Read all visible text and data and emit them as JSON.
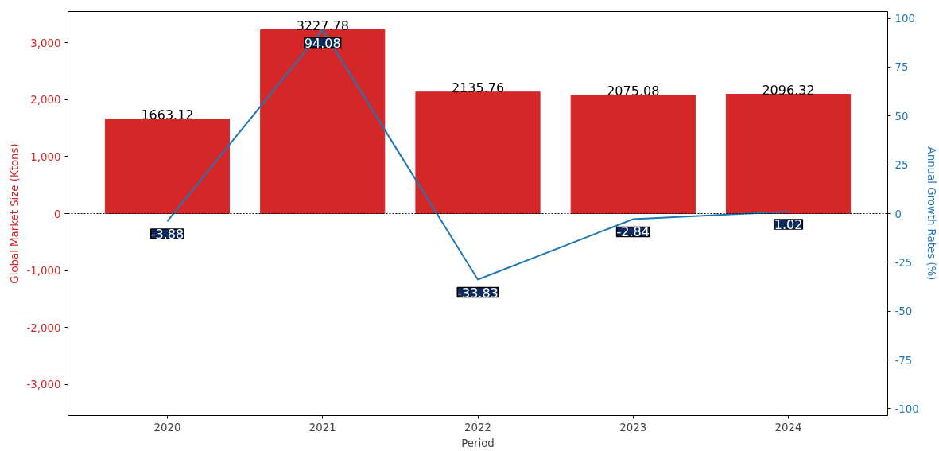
{
  "chart_data": {
    "type": "bar",
    "xlabel": "Period",
    "ylabel": "Global Market Size (Ktons)",
    "y2label": "Annual Growth Rates (%)",
    "categories": [
      "2020",
      "2021",
      "2022",
      "2023",
      "2024"
    ],
    "series": [
      {
        "color": "#d62728",
        "values": [
          1663.12,
          3227.78,
          2135.76,
          2075.08,
          2096.32
        ],
        "value_labels": [
          "1663.12",
          "3227.78",
          "2135.76",
          "2075.08",
          "2096.32"
        ]
      },
      {
        "type": "line",
        "axis": "y2",
        "color": "#1f77b4",
        "values": [
          -3.88,
          94.08,
          -33.83,
          -2.84,
          1.02
        ],
        "value_labels": [
          "-3.88",
          "94.08",
          "-33.83",
          "-2.84",
          "1.02"
        ]
      }
    ],
    "ylim": [
      -3550,
      3550
    ],
    "yticks": [
      {
        "value": -3000,
        "label": "-3,000"
      },
      {
        "value": -2000,
        "label": "-2,000"
      },
      {
        "value": -1000,
        "label": "-1,000"
      },
      0,
      {
        "value": 1000,
        "label": "1,000"
      },
      {
        "value": 2000,
        "label": "2,000"
      },
      {
        "value": 3000,
        "label": "3,000"
      }
    ],
    "y2lim": [
      -103.5,
      103.5
    ],
    "y2ticks": [
      -100,
      -75,
      -50,
      -25,
      0,
      25,
      50,
      75,
      100
    ],
    "ref_lines": [
      {
        "axis": "y",
        "value": 0,
        "color": "#000000",
        "line_style": "dotted"
      }
    ],
    "grid": false
  }
}
